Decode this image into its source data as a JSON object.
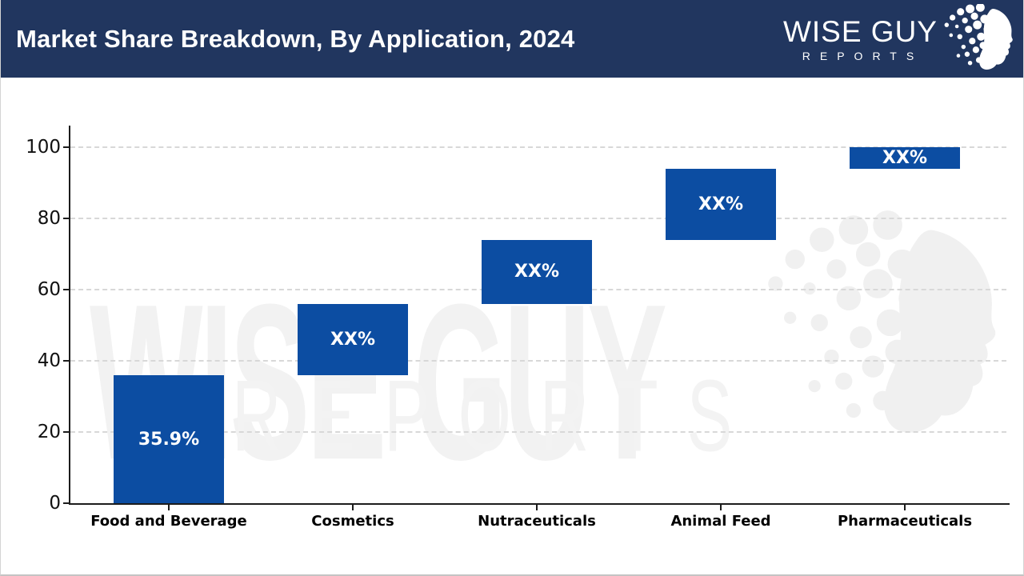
{
  "header": {
    "title": "Market Share Breakdown, By Application, 2024",
    "logo": {
      "line1": "WISE GUY",
      "line2": "REPORTS"
    }
  },
  "watermark": {
    "line1": "WISE GUY",
    "line2": "REPORTS"
  },
  "colors": {
    "header_bg": "#21365f",
    "bar": "#0c4da2",
    "grid": "#d8d8d8",
    "axis": "#1c1c1c",
    "bar_label": "#ffffff",
    "watermark": "#f2f2f2"
  },
  "chart_data": {
    "type": "bar",
    "subtype": "waterfall",
    "title": "Market Share Breakdown, By Application, 2024",
    "xlabel": "",
    "ylabel": "",
    "categories": [
      "Food and Beverage",
      "Cosmetics",
      "Nutraceuticals",
      "Animal Feed",
      "Pharmaceuticals"
    ],
    "segments": [
      {
        "category": "Food and Beverage",
        "start": 0,
        "end": 35.9,
        "value": 35.9,
        "label": "35.9%"
      },
      {
        "category": "Cosmetics",
        "start": 35.9,
        "end": 56,
        "value": 20.1,
        "label": "XX%"
      },
      {
        "category": "Nutraceuticals",
        "start": 56,
        "end": 74,
        "value": 18,
        "label": "XX%"
      },
      {
        "category": "Animal Feed",
        "start": 74,
        "end": 94,
        "value": 20,
        "label": "XX%"
      },
      {
        "category": "Pharmaceuticals",
        "start": 94,
        "end": 100,
        "value": 6,
        "label": "XX%"
      }
    ],
    "yticks": [
      0,
      20,
      40,
      60,
      80,
      100
    ],
    "ylim": [
      0,
      106
    ],
    "grid": "horizontal-dashed",
    "legend": "none"
  }
}
